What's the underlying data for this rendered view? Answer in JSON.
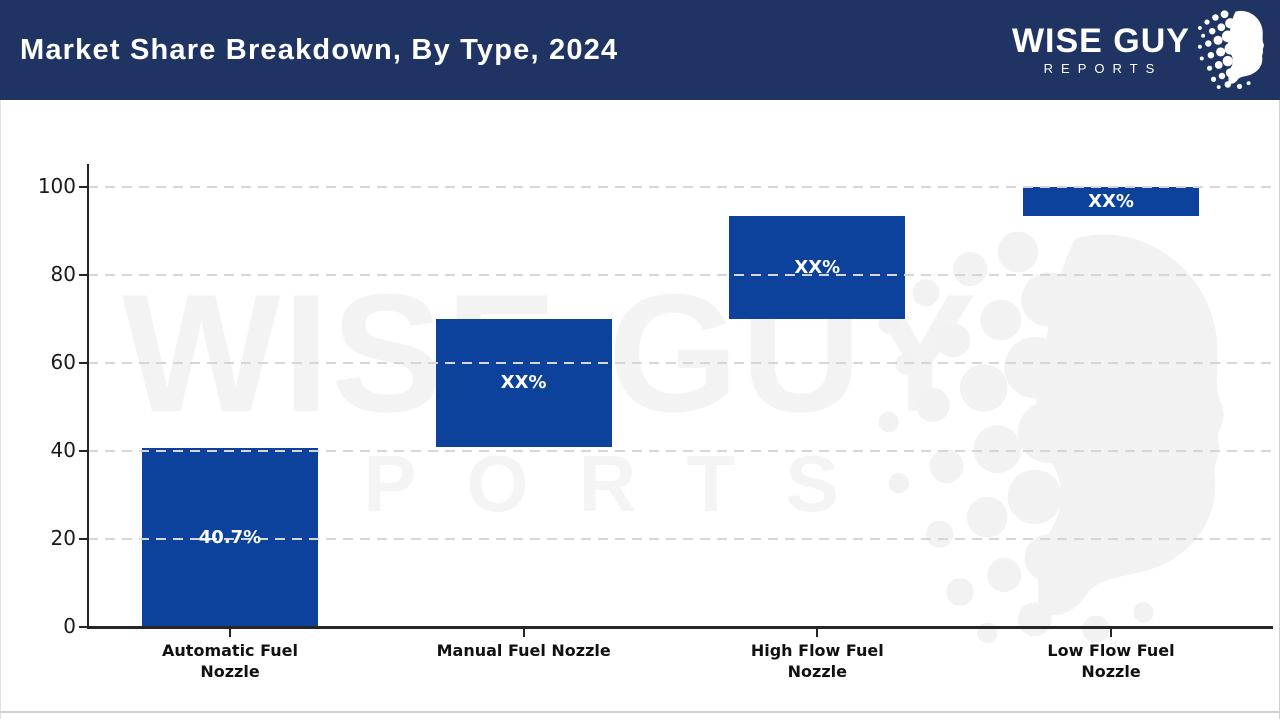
{
  "header": {
    "title": "Market Share Breakdown, By Type, 2024",
    "logo": {
      "name_top": "WISE GUY",
      "name_bottom": "REPORTS"
    }
  },
  "watermark": {
    "text_top": "WISE GUY",
    "text_bottom": "REPORTS"
  },
  "colors": {
    "header_bg": "#1f3462",
    "bar": "#0c419c",
    "grid": "#d6d6d6",
    "axis": "#262626",
    "watermark": "#f2f2f2",
    "bar_label_text": "#ffffff",
    "tick_text": "#1a1a1a"
  },
  "chart_data": {
    "type": "bar",
    "subtype": "floating cumulative range bars",
    "title": "Market Share Breakdown, By Type, 2024",
    "categories": [
      "Automatic Fuel Nozzle",
      "Manual Fuel Nozzle",
      "High Flow Fuel Nozzle",
      "Low Flow Fuel Nozzle"
    ],
    "categories_lines": [
      [
        "Automatic Fuel",
        "Nozzle"
      ],
      [
        "Manual Fuel Nozzle"
      ],
      [
        "High Flow Fuel",
        "Nozzle"
      ],
      [
        "Low Flow Fuel",
        "Nozzle"
      ]
    ],
    "ranges": [
      [
        0,
        40.7
      ],
      [
        41,
        70
      ],
      [
        70,
        93.3
      ],
      [
        93.3,
        100
      ]
    ],
    "segment_values": [
      40.7,
      29,
      23.3,
      6.7
    ],
    "bar_labels": [
      "40.7%",
      "XX%",
      "XX%",
      "XX%"
    ],
    "xlabel": "",
    "ylabel": "",
    "ylim": [
      0,
      100
    ],
    "yticks": [
      0,
      20,
      40,
      60,
      80,
      100
    ],
    "grid": "horizontal dashed",
    "legend": "none"
  }
}
